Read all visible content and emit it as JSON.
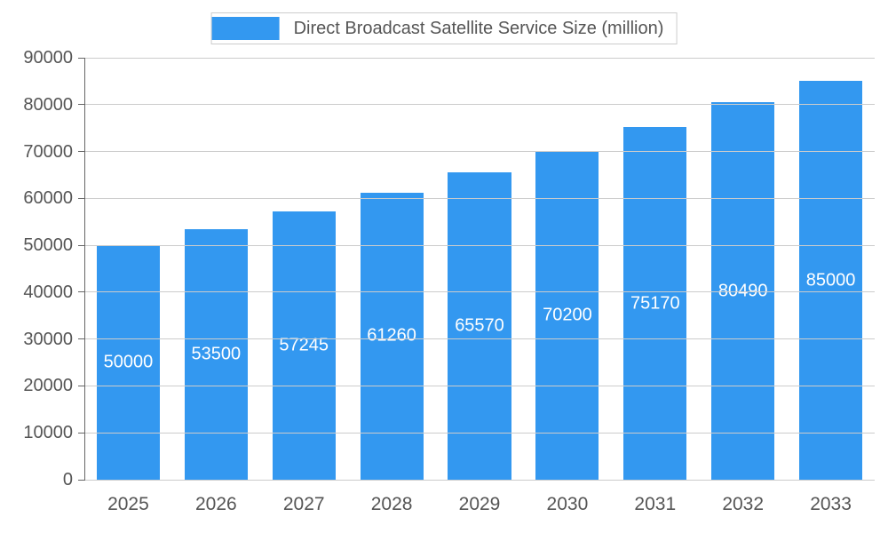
{
  "legend": {
    "label": "Direct Broadcast Satellite Service Size (million)"
  },
  "colors": {
    "bar": "#3398f0",
    "grid": "#cccccc",
    "axis": "#666666",
    "text": "#555555",
    "value_label": "#ffffff"
  },
  "chart_data": {
    "type": "bar",
    "title": "Direct Broadcast Satellite Service Size (million)",
    "categories": [
      "2025",
      "2026",
      "2027",
      "2028",
      "2029",
      "2030",
      "2031",
      "2032",
      "2033"
    ],
    "values": [
      50000,
      53500,
      57245,
      61260,
      65570,
      70200,
      75170,
      80490,
      85000
    ],
    "xlabel": "",
    "ylabel": "",
    "ylim": [
      0,
      90000
    ],
    "ytick_interval": 10000,
    "grid": true,
    "legend_position": "top",
    "value_labels": "inside-center"
  }
}
